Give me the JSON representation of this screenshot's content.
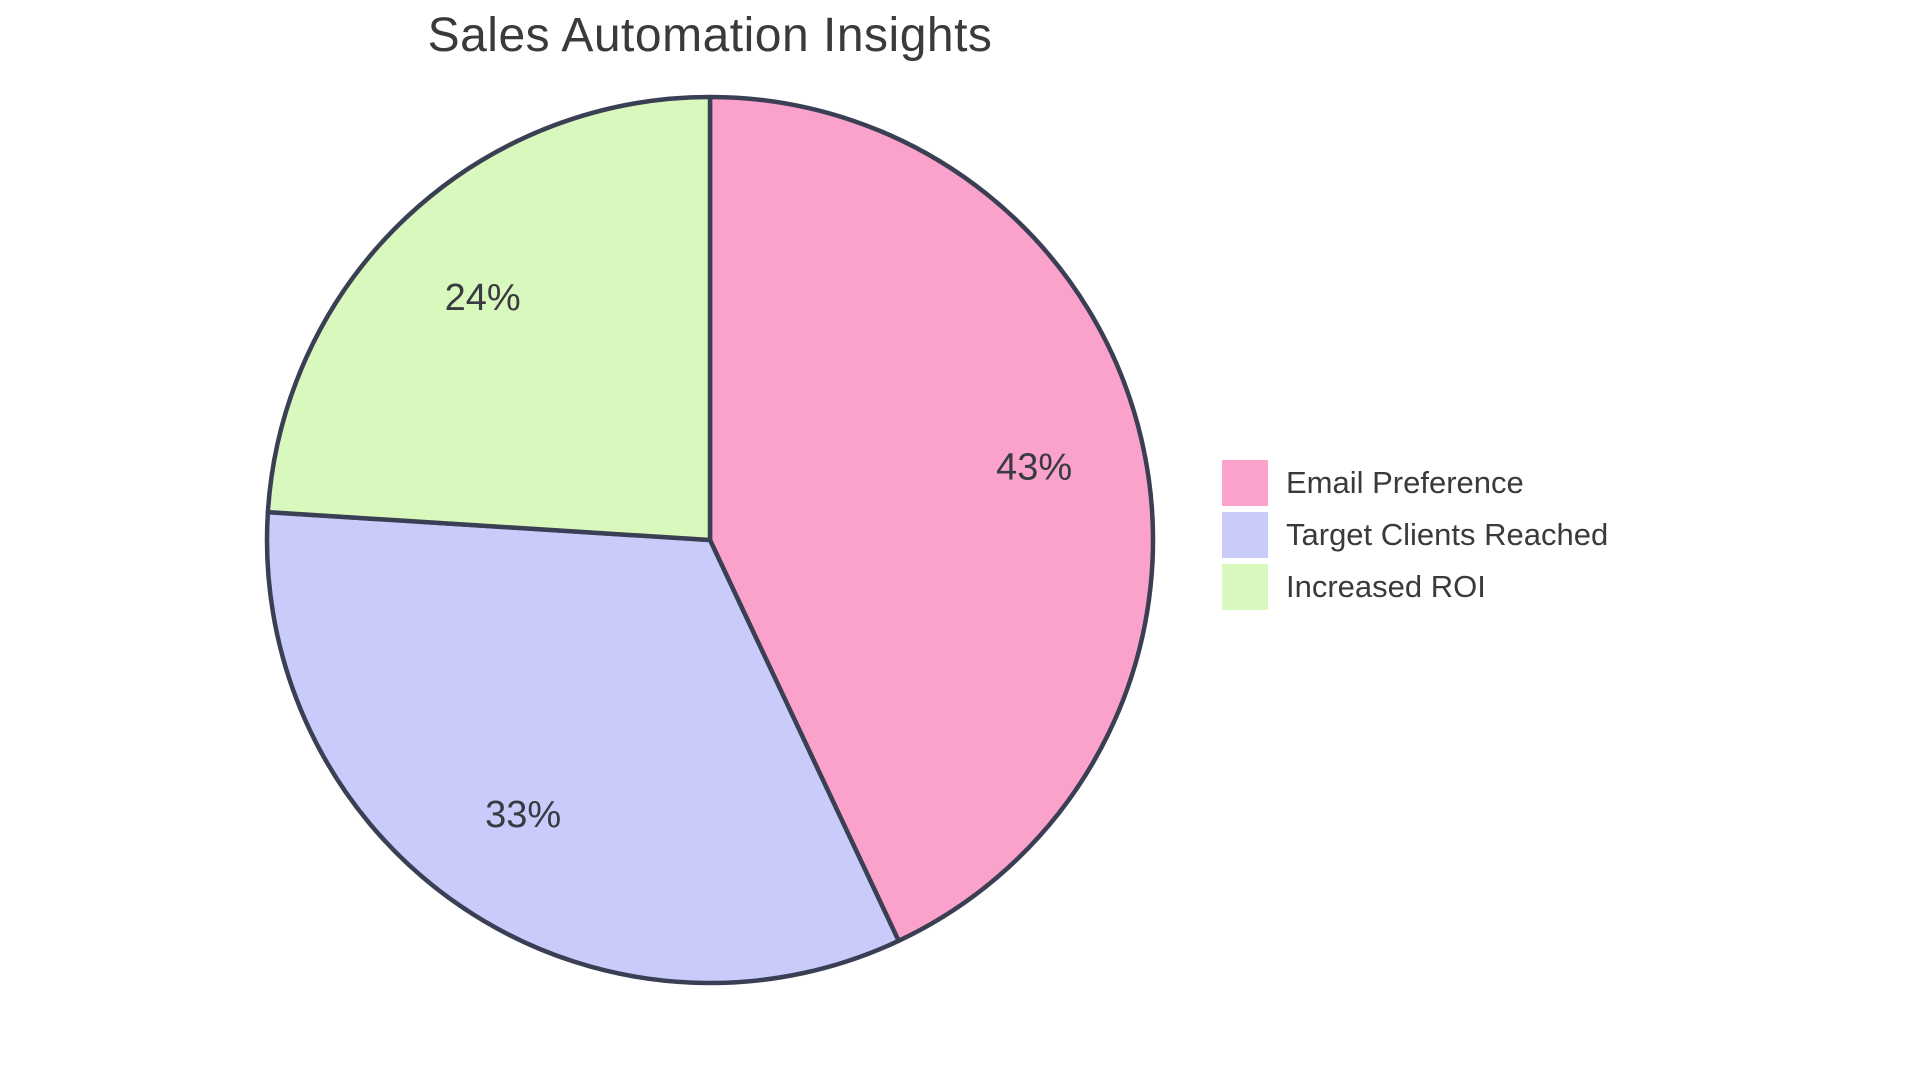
{
  "title": "Sales Automation Insights",
  "chart_data": {
    "type": "pie",
    "title": "Sales Automation Insights",
    "labels": [
      "Email Preference",
      "Target Clients Reached",
      "Increased ROI"
    ],
    "values": [
      43,
      33,
      24
    ],
    "percent_labels": [
      "43%",
      "33%",
      "24%"
    ],
    "colors": [
      "#FBA2CC",
      "#C9CCFA",
      "#D9F8BE"
    ],
    "stroke_color": "#3B3F54",
    "start_angle_deg": 0,
    "direction": "clockwise",
    "legend_position": "right",
    "legend": {
      "items": [
        {
          "label": "Email Preference",
          "color": "#FBA2CC"
        },
        {
          "label": "Target Clients Reached",
          "color": "#C9CCFA"
        },
        {
          "label": "Increased ROI",
          "color": "#D9F8BE"
        }
      ]
    }
  }
}
